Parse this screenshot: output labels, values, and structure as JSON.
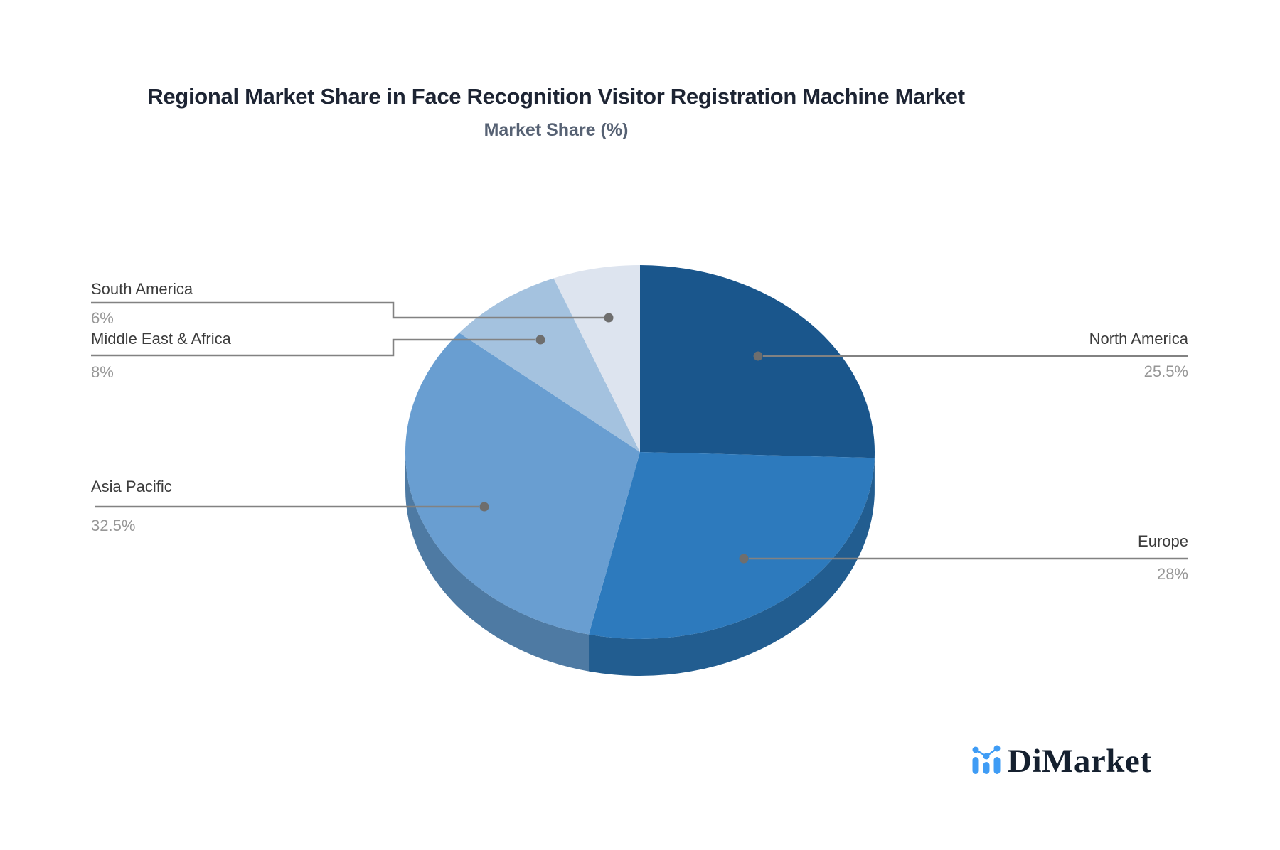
{
  "chart_data": {
    "type": "pie",
    "title": "Regional Market Share in Face Recognition Visitor Registration Machine Market",
    "subtitle": "Market Share (%)",
    "unit": "%",
    "direction": "clockwise",
    "start_angle_deg": 0,
    "legend_position": "callout-labels",
    "effect_3d": true,
    "series": [
      {
        "name": "North America",
        "value": 25.5,
        "label": "25.5%",
        "color": "#1a568c",
        "side_color": "#164873"
      },
      {
        "name": "Europe",
        "value": 28,
        "label": "28%",
        "color": "#2d7abd",
        "side_color": "#225d90"
      },
      {
        "name": "Asia Pacific",
        "value": 32.5,
        "label": "32.5%",
        "color": "#699ed1",
        "side_color": "#4e7aa3"
      },
      {
        "name": "Middle East & Africa",
        "value": 8,
        "label": "8%",
        "color": "#a4c2df",
        "side_color": "#7e9cb8"
      },
      {
        "name": "South America",
        "value": 6,
        "label": "6%",
        "color": "#dde4ef",
        "side_color": "#b3bcc9"
      }
    ],
    "style": {
      "background": "#ffffff",
      "title_color": "#1d2433",
      "subtitle_color": "#566173",
      "label_name_color": "#3c3c3c",
      "label_value_color": "#979797",
      "callout_line_color": "#828282",
      "callout_dot_color": "#6e6e6e"
    }
  },
  "logo": {
    "text": "DiMarket",
    "icon": "bar-line-chart-icon",
    "icon_color": "#3f9cf5",
    "text_color": "#15202f"
  }
}
